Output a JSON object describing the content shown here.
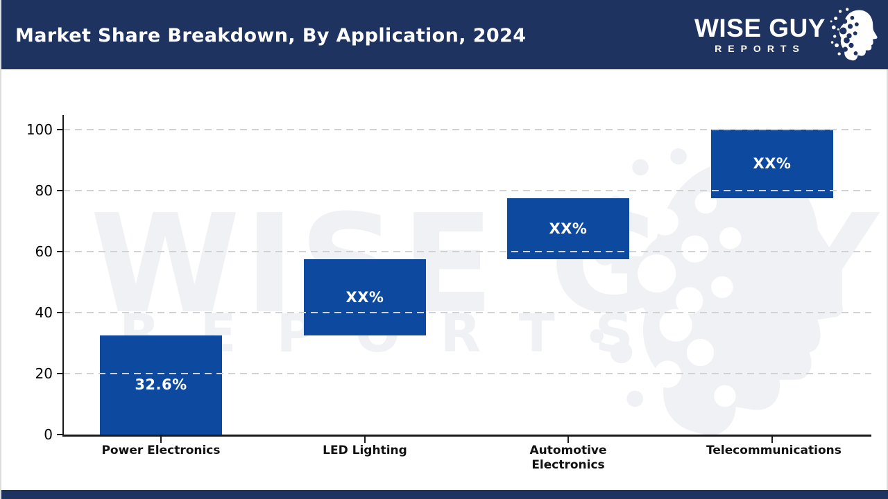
{
  "header": {
    "title": "Market Share Breakdown, By Application, 2024"
  },
  "logo": {
    "name": "WISE GUY",
    "sub": "REPORTS",
    "head_icon": "dotted-face-profile-icon"
  },
  "watermark": {
    "line1": "WISE GUY",
    "line2": "REPORTS"
  },
  "colors": {
    "header_bg": "#1f3361",
    "footer_bg": "#1f3361",
    "bar": "#0d4a9f",
    "bar_label": "#ffffff",
    "gridline": "#d2d2d2",
    "axis": "#1a1a1a",
    "watermark": "#f0f1f4"
  },
  "chart_data": {
    "type": "bar",
    "subtype": "waterfall",
    "title": "Market Share Breakdown, By Application, 2024",
    "xlabel": "",
    "ylabel": "",
    "ylim": [
      0,
      105
    ],
    "yticks": [
      0,
      20,
      40,
      60,
      80,
      100
    ],
    "grid": "horizontal-dashed, drawn above bars",
    "legend": "none",
    "categories": [
      "Power Electronics",
      "LED Lighting",
      "Automotive Electronics",
      "Telecommunications"
    ],
    "segments": [
      {
        "category": "Power Electronics",
        "start": 0,
        "end": 32.6,
        "label": "32.6%"
      },
      {
        "category": "LED Lighting",
        "start": 32.6,
        "end": 57.4,
        "label": "XX%"
      },
      {
        "category": "Automotive Electronics",
        "start": 57.4,
        "end": 77.6,
        "label": "XX%"
      },
      {
        "category": "Telecommunications",
        "start": 77.6,
        "end": 100,
        "label": "XX%"
      }
    ]
  }
}
